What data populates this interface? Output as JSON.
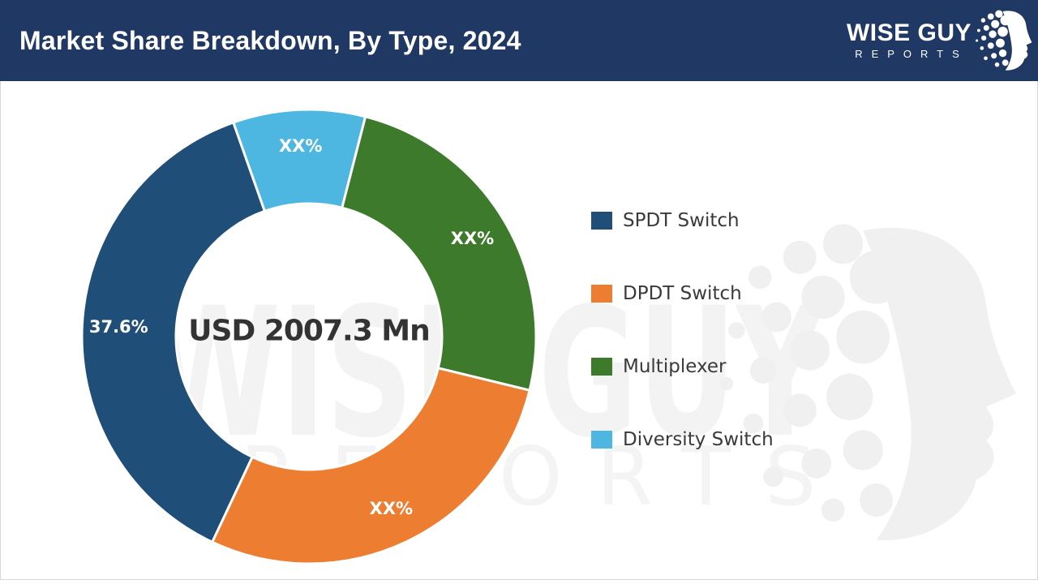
{
  "header": {
    "title": "Market Share Breakdown, By Type, 2024",
    "logo": {
      "name": "WISE GUY",
      "tagline": "REPORTS"
    }
  },
  "watermark": {
    "line1": "WISE GUY",
    "line2": "REPORTS"
  },
  "chart_data": {
    "type": "pie",
    "subtype": "donut",
    "title": "Market Share Breakdown, By Type, 2024",
    "center_label": "USD 2007.3 Mn",
    "legend_position": "right",
    "start_angle_deg": 205.2,
    "draw_order": [
      0,
      3,
      2,
      1
    ],
    "outer_radius": 280,
    "inner_radius": 164,
    "label_radius": 235,
    "segments": [
      {
        "label": "SPDT Switch",
        "display": "37.6%",
        "value": 37.6,
        "color": "#1f4e79"
      },
      {
        "label": "DPDT Switch",
        "display": "XX%",
        "value": 28.2,
        "color": "#ed7d31"
      },
      {
        "label": "Multiplexer",
        "display": "XX%",
        "value": 24.8,
        "color": "#3e7a2b"
      },
      {
        "label": "Diversity Switch",
        "display": "XX%",
        "value": 9.4,
        "color": "#4db7e2"
      }
    ]
  }
}
